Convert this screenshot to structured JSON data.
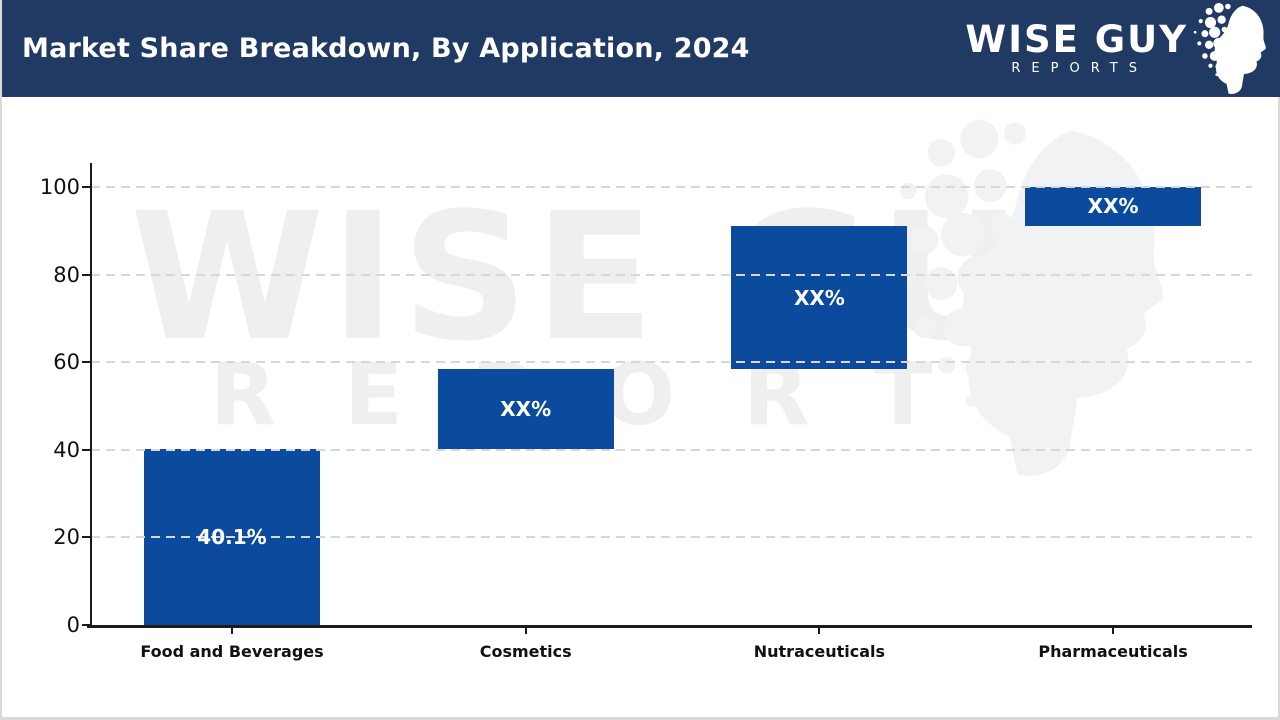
{
  "header": {
    "title": "Market Share Breakdown, By Application, 2024",
    "bg_color": "#213a63",
    "logo": {
      "line1": "WISE GUY",
      "line2": "REPORTS"
    }
  },
  "watermark": {
    "line1": "WISE GU",
    "line2": "REPORTS"
  },
  "chart_data": {
    "type": "bar",
    "subtype": "waterfall",
    "title": "Market Share Breakdown, By Application, 2024",
    "xlabel": "",
    "ylabel": "",
    "categories": [
      "Food and Beverages",
      "Cosmetics",
      "Nutraceuticals",
      "Pharmaceuticals"
    ],
    "segments": [
      {
        "category": "Food and Beverages",
        "start": 0,
        "end": 40.1,
        "label": "40.1%"
      },
      {
        "category": "Cosmetics",
        "start": 40.1,
        "end": 58.4,
        "label": "XX%"
      },
      {
        "category": "Nutraceuticals",
        "start": 58.4,
        "end": 91.1,
        "label": "XX%"
      },
      {
        "category": "Pharmaceuticals",
        "start": 91.1,
        "end": 100,
        "label": "XX%"
      }
    ],
    "yticks": [
      0,
      20,
      40,
      60,
      80,
      100
    ],
    "ylim": [
      0,
      105.5
    ],
    "grid": "horizontal-dashed",
    "legend": "none",
    "bar_color": "#0c4a9e",
    "bar_label_color": "#ffffff",
    "gridline_color": "#d7d7d7",
    "axis_color": "#1a1a1a"
  }
}
